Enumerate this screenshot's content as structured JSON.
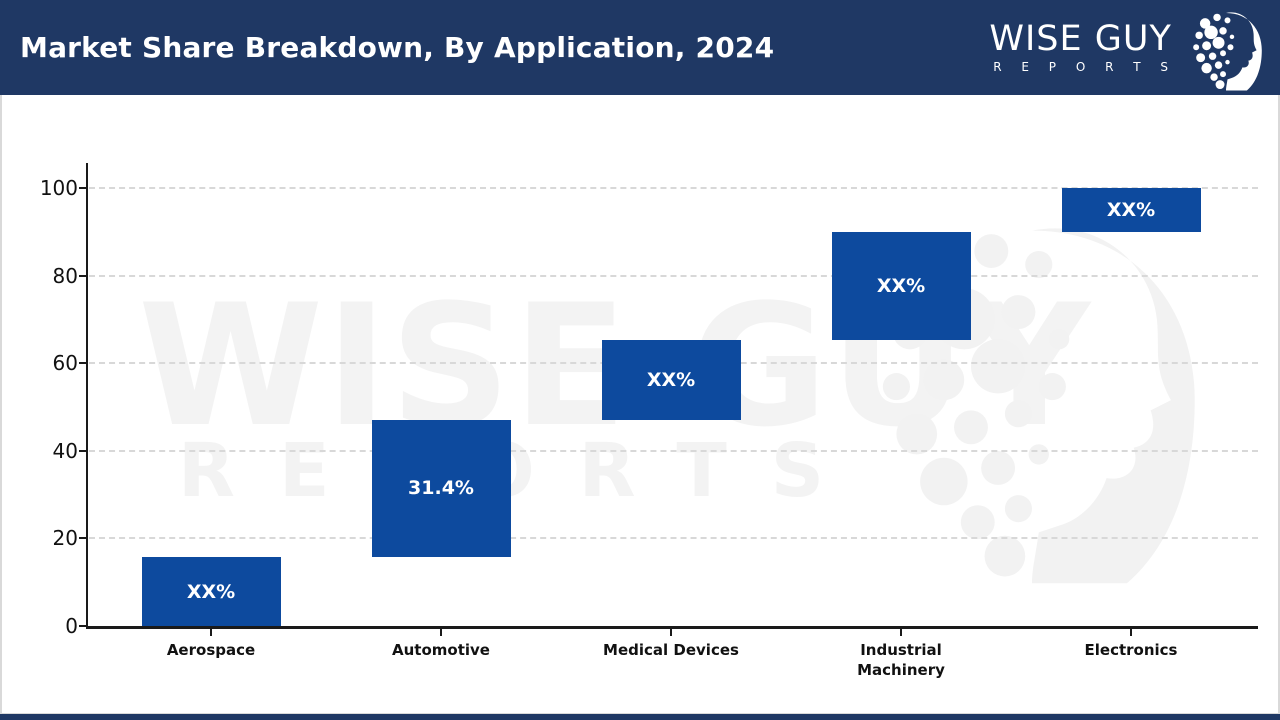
{
  "header": {
    "title": "Market Share Breakdown, By Application, 2024",
    "logo": {
      "line1": "WISE GUY",
      "line2": "REPORTS"
    }
  },
  "watermark": {
    "line1": "WISE GUY",
    "line2": "REPORTS"
  },
  "colors": {
    "header_bg": "#1f3864",
    "bar": "#0d4a9e",
    "grid": "#d8d8d8",
    "axis": "#1a1a1a",
    "bar_label_text": "#ffffff",
    "watermark": "#f3f3f3"
  },
  "chart_data": {
    "type": "bar",
    "subtype": "waterfall",
    "title": "Market Share Breakdown, By Application, 2024",
    "categories": [
      "Aerospace",
      "Automotive",
      "Medical Devices",
      "Industrial\nMachinery",
      "Electronics"
    ],
    "series": [
      {
        "name": "Market share (%)",
        "segments": [
          {
            "category": "Aerospace",
            "start": 0,
            "end": 15.7,
            "label": "XX%"
          },
          {
            "category": "Automotive",
            "start": 15.7,
            "end": 47.1,
            "label": "31.4%"
          },
          {
            "category": "Medical Devices",
            "start": 47.1,
            "end": 65.2,
            "label": "XX%"
          },
          {
            "category": "Industrial Machinery",
            "start": 65.2,
            "end": 90.0,
            "label": "XX%"
          },
          {
            "category": "Electronics",
            "start": 90.0,
            "end": 100.0,
            "label": "XX%"
          }
        ]
      }
    ],
    "yticks": [
      0,
      20,
      40,
      60,
      80,
      100
    ],
    "ylim": [
      0,
      105.7
    ],
    "xlabel": "",
    "ylabel": "",
    "grid": "horizontal-dashed",
    "legend": "none"
  }
}
